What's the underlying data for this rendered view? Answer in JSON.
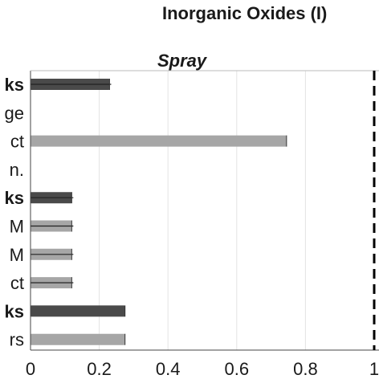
{
  "figure": {
    "title": "Inorganic Oxides (I)",
    "panel_title": "Spray"
  },
  "chart_data": {
    "type": "bar",
    "orientation": "horizontal",
    "title": "Inorganic Oxides (I)",
    "subtitle": "Spray",
    "categories": [
      "ks",
      "ge",
      "ct",
      "n.",
      "ks",
      "M",
      "M",
      "ct",
      "ks",
      "rs"
    ],
    "category_bold": [
      true,
      false,
      false,
      false,
      true,
      false,
      false,
      false,
      true,
      false
    ],
    "values": [
      0.23,
      0,
      0.745,
      0,
      0.12,
      0.12,
      0.12,
      0.12,
      0.275,
      0.275
    ],
    "bar_colors": [
      "#4a4a4a",
      "#a6a6a6",
      "#a6a6a6",
      "#a6a6a6",
      "#4a4a4a",
      "#a6a6a6",
      "#a6a6a6",
      "#a6a6a6",
      "#4a4a4a",
      "#a6a6a6"
    ],
    "error_bars": [
      true,
      false,
      false,
      false,
      true,
      true,
      true,
      true,
      false,
      false
    ],
    "xlim": [
      0,
      1.0
    ],
    "xticks": [
      0,
      0.2,
      0.4,
      0.6,
      0.8,
      1.0
    ],
    "xtick_labels": [
      "0",
      "0.2",
      "0.4",
      "0.6",
      "0.8",
      "1"
    ],
    "reference_line": {
      "x": 1.0,
      "style": "dashed",
      "color": "#000000"
    },
    "grid": "vertical",
    "xlabel": "",
    "ylabel": ""
  }
}
